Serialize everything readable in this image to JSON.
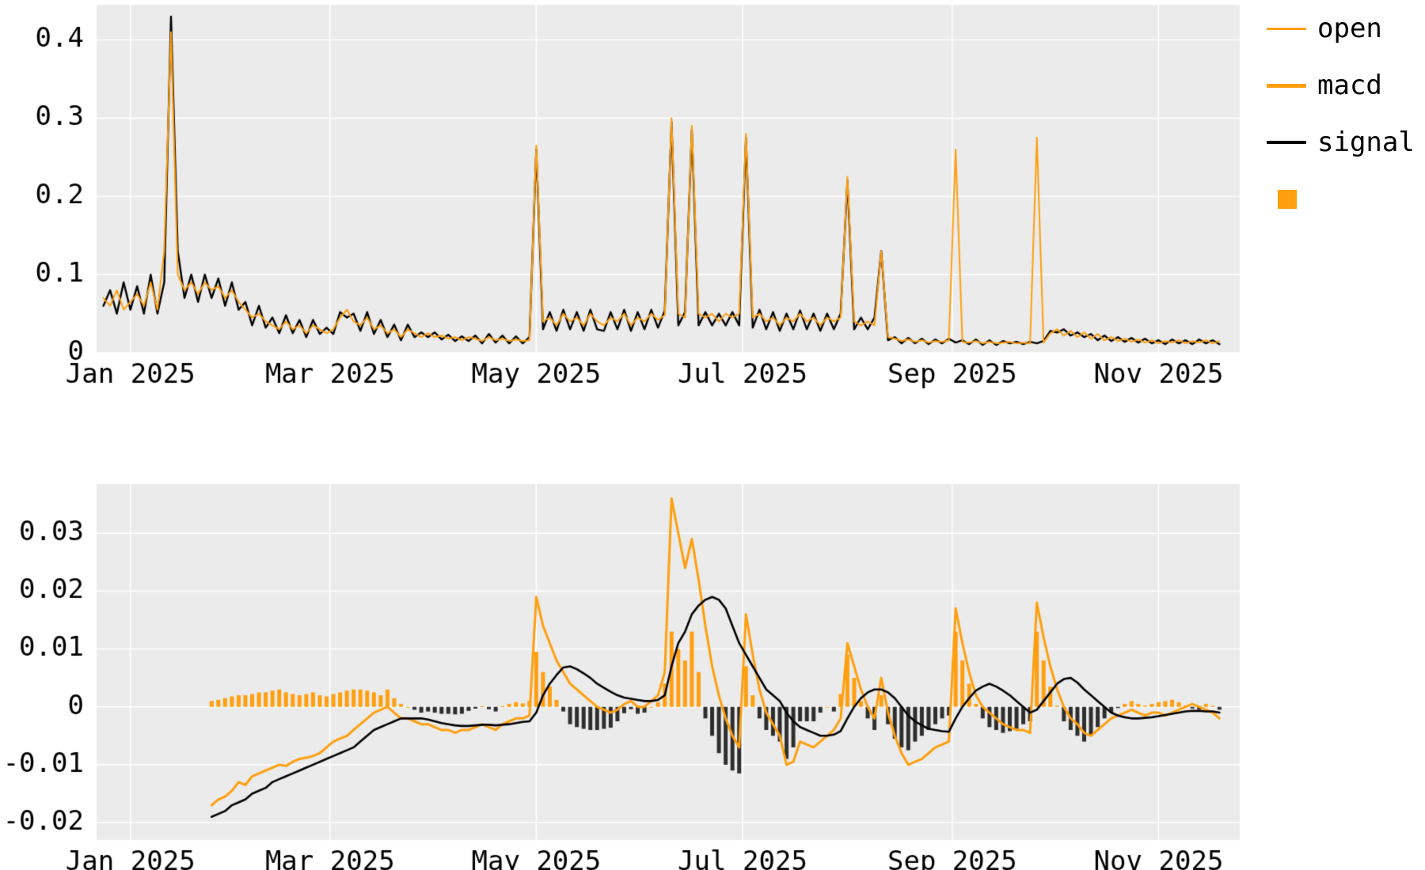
{
  "figure": {
    "background": "#ffffff",
    "plot_bg": "#ebebeb",
    "grid_color": "#ffffff",
    "tick_color": "#000000"
  },
  "legend": {
    "position": "right-outside",
    "items": [
      {
        "label": "open",
        "type": "line",
        "color": "#ff9f0e",
        "width": 2
      },
      {
        "label": "macd",
        "type": "line",
        "color": "#ff9f0e",
        "width": 4
      },
      {
        "label": "signal",
        "type": "line",
        "color": "#000000",
        "width": 3
      },
      {
        "label": "",
        "type": "square",
        "color": "#ff9f0e"
      }
    ]
  },
  "chart_data": [
    {
      "id": "price-panel",
      "type": "line",
      "title": "",
      "xlabel": "",
      "ylabel": "",
      "x_unit": "days from 2025-01-01",
      "xlim": [
        -10,
        328
      ],
      "ylim": [
        0,
        0.445
      ],
      "grid": true,
      "y_ticks": [
        0,
        0.1,
        0.2,
        0.3,
        0.4
      ],
      "y_tick_labels": [
        "0",
        "0.1",
        "0.2",
        "0.3",
        "0.4"
      ],
      "x_ticks": [
        {
          "day": 0,
          "label": "Jan 2025"
        },
        {
          "day": 59,
          "label": "Mar 2025"
        },
        {
          "day": 120,
          "label": "May 2025"
        },
        {
          "day": 181,
          "label": "Jul 2025"
        },
        {
          "day": 243,
          "label": "Sep 2025"
        },
        {
          "day": 304,
          "label": "Nov 2025"
        }
      ],
      "series": [
        {
          "name": "signal",
          "color": "#000000",
          "width": 2.4,
          "x0": -8,
          "dx": 2,
          "values": [
            0.06,
            0.08,
            0.05,
            0.09,
            0.055,
            0.085,
            0.05,
            0.1,
            0.05,
            0.09,
            0.43,
            0.13,
            0.07,
            0.1,
            0.065,
            0.1,
            0.07,
            0.095,
            0.06,
            0.09,
            0.055,
            0.065,
            0.035,
            0.06,
            0.032,
            0.045,
            0.025,
            0.048,
            0.025,
            0.042,
            0.02,
            0.042,
            0.024,
            0.032,
            0.024,
            0.052,
            0.045,
            0.05,
            0.028,
            0.052,
            0.024,
            0.042,
            0.02,
            0.036,
            0.016,
            0.036,
            0.02,
            0.026,
            0.02,
            0.026,
            0.017,
            0.023,
            0.015,
            0.021,
            0.015,
            0.022,
            0.012,
            0.024,
            0.013,
            0.022,
            0.012,
            0.021,
            0.012,
            0.02,
            0.26,
            0.03,
            0.052,
            0.028,
            0.055,
            0.03,
            0.052,
            0.028,
            0.055,
            0.03,
            0.028,
            0.052,
            0.03,
            0.055,
            0.028,
            0.052,
            0.03,
            0.055,
            0.032,
            0.054,
            0.295,
            0.035,
            0.052,
            0.285,
            0.035,
            0.052,
            0.035,
            0.05,
            0.035,
            0.052,
            0.035,
            0.275,
            0.032,
            0.055,
            0.03,
            0.052,
            0.028,
            0.05,
            0.03,
            0.054,
            0.03,
            0.05,
            0.028,
            0.05,
            0.03,
            0.05,
            0.22,
            0.03,
            0.045,
            0.03,
            0.045,
            0.13,
            0.016,
            0.02,
            0.012,
            0.019,
            0.012,
            0.018,
            0.011,
            0.017,
            0.012,
            0.018,
            0.013,
            0.016,
            0.011,
            0.017,
            0.01,
            0.016,
            0.01,
            0.015,
            0.012,
            0.014,
            0.011,
            0.014,
            0.012,
            0.015,
            0.028,
            0.026,
            0.03,
            0.022,
            0.026,
            0.02,
            0.024,
            0.016,
            0.022,
            0.015,
            0.02,
            0.014,
            0.019,
            0.013,
            0.018,
            0.012,
            0.016,
            0.011,
            0.017,
            0.012,
            0.016,
            0.011,
            0.017,
            0.012,
            0.016,
            0.011
          ]
        },
        {
          "name": "open",
          "color": "#ff9f0e",
          "width": 2,
          "x0": -8,
          "dx": 2,
          "values": [
            0.07,
            0.06,
            0.08,
            0.055,
            0.065,
            0.075,
            0.06,
            0.09,
            0.055,
            0.13,
            0.41,
            0.1,
            0.08,
            0.09,
            0.075,
            0.09,
            0.08,
            0.085,
            0.07,
            0.08,
            0.065,
            0.055,
            0.045,
            0.05,
            0.04,
            0.035,
            0.03,
            0.04,
            0.03,
            0.035,
            0.025,
            0.035,
            0.03,
            0.025,
            0.03,
            0.045,
            0.055,
            0.04,
            0.035,
            0.045,
            0.03,
            0.035,
            0.025,
            0.03,
            0.02,
            0.03,
            0.025,
            0.02,
            0.025,
            0.02,
            0.022,
            0.018,
            0.02,
            0.016,
            0.02,
            0.018,
            0.015,
            0.02,
            0.016,
            0.018,
            0.015,
            0.017,
            0.015,
            0.016,
            0.265,
            0.04,
            0.045,
            0.035,
            0.05,
            0.04,
            0.045,
            0.035,
            0.05,
            0.04,
            0.035,
            0.045,
            0.04,
            0.05,
            0.035,
            0.045,
            0.04,
            0.05,
            0.042,
            0.048,
            0.3,
            0.05,
            0.045,
            0.29,
            0.05,
            0.045,
            0.05,
            0.04,
            0.05,
            0.045,
            0.05,
            0.28,
            0.045,
            0.05,
            0.04,
            0.045,
            0.035,
            0.045,
            0.04,
            0.05,
            0.04,
            0.045,
            0.035,
            0.045,
            0.04,
            0.045,
            0.225,
            0.04,
            0.035,
            0.04,
            0.035,
            0.13,
            0.02,
            0.018,
            0.015,
            0.017,
            0.014,
            0.016,
            0.013,
            0.015,
            0.014,
            0.016,
            0.26,
            0.014,
            0.013,
            0.015,
            0.012,
            0.014,
            0.012,
            0.013,
            0.014,
            0.012,
            0.013,
            0.012,
            0.275,
            0.013,
            0.025,
            0.03,
            0.022,
            0.028,
            0.02,
            0.026,
            0.018,
            0.024,
            0.016,
            0.02,
            0.015,
            0.018,
            0.014,
            0.017,
            0.013,
            0.016,
            0.012,
            0.015,
            0.013,
            0.016,
            0.012,
            0.015,
            0.013,
            0.016,
            0.012,
            0.015
          ]
        }
      ]
    },
    {
      "id": "macd-panel",
      "type": "line+histogram",
      "title": "",
      "xlabel": "",
      "ylabel": "",
      "x_unit": "days from 2025-01-01",
      "xlim": [
        -10,
        328
      ],
      "ylim": [
        -0.023,
        0.0385
      ],
      "grid": true,
      "y_ticks": [
        -0.02,
        -0.01,
        0,
        0.01,
        0.02,
        0.03
      ],
      "y_tick_labels": [
        "-0.02",
        "-0.01",
        "0",
        "0.01",
        "0.02",
        "0.03"
      ],
      "x_ticks": [
        {
          "day": 0,
          "label": "Jan 2025"
        },
        {
          "day": 59,
          "label": "Mar 2025"
        },
        {
          "day": 120,
          "label": "May 2025"
        },
        {
          "day": 181,
          "label": "Jul 2025"
        },
        {
          "day": 243,
          "label": "Sep 2025"
        },
        {
          "day": 304,
          "label": "Nov 2025"
        }
      ],
      "histogram": {
        "name": "macd-histogram",
        "pos_color": "#ff9f0e",
        "neg_color": "#2e2e2e",
        "x0": 24,
        "dx": 2,
        "values": [
          0.001,
          0.0012,
          0.0015,
          0.0018,
          0.002,
          0.002,
          0.0022,
          0.0025,
          0.0025,
          0.0028,
          0.003,
          0.0025,
          0.0022,
          0.002,
          0.0022,
          0.0025,
          0.002,
          0.0018,
          0.0022,
          0.0025,
          0.0028,
          0.003,
          0.003,
          0.0028,
          0.0025,
          0.002,
          0.003,
          0.0015,
          0.0005,
          0.0,
          -0.0005,
          -0.001,
          -0.0008,
          -0.001,
          -0.0012,
          -0.0012,
          -0.0013,
          -0.0012,
          -0.0007,
          -0.0003,
          0.0001,
          -0.0004,
          -0.0008,
          0.0001,
          0.0005,
          0.0008,
          0.0006,
          0.001,
          0.0095,
          0.006,
          0.0035,
          0.0012,
          -0.0008,
          -0.003,
          -0.0035,
          -0.0038,
          -0.004,
          -0.004,
          -0.0038,
          -0.0036,
          -0.0025,
          -0.0011,
          -0.0004,
          -0.0012,
          -0.001,
          0.0,
          0.0008,
          0.004,
          0.013,
          0.01,
          0.008,
          0.013,
          0.006,
          -0.002,
          -0.005,
          -0.008,
          -0.01,
          -0.011,
          -0.0115,
          0.007,
          0.002,
          -0.002,
          -0.004,
          -0.005,
          -0.006,
          -0.009,
          -0.007,
          -0.0025,
          -0.0025,
          -0.0025,
          -0.001,
          0.0,
          -0.0008,
          0.0022,
          0.009,
          0.005,
          0.001,
          -0.002,
          -0.004,
          0.002,
          -0.003,
          -0.0055,
          -0.007,
          -0.0075,
          -0.006,
          -0.005,
          -0.004,
          -0.003,
          -0.002,
          -0.0015,
          0.013,
          0.008,
          0.004,
          0.0005,
          -0.002,
          -0.0035,
          -0.004,
          -0.0045,
          -0.0042,
          -0.0038,
          -0.003,
          -0.0025,
          0.013,
          0.008,
          0.0035,
          0.0002,
          -0.0025,
          -0.004,
          -0.005,
          -0.006,
          -0.005,
          -0.0035,
          -0.002,
          -0.001,
          -0.0002,
          0.0005,
          0.001,
          0.0005,
          0.0002,
          0.0005,
          0.0008,
          0.001,
          0.0012,
          0.0008,
          0.0002,
          -0.0003,
          -0.0005,
          0.0005,
          0.0002,
          -0.0005
        ]
      },
      "series": [
        {
          "name": "macd",
          "color": "#ff9f0e",
          "width": 3,
          "x0": 24,
          "dx": 2,
          "values": [
            -0.017,
            -0.016,
            -0.0155,
            -0.0145,
            -0.013,
            -0.0135,
            -0.012,
            -0.0115,
            -0.011,
            -0.0105,
            -0.01,
            -0.0102,
            -0.0095,
            -0.009,
            -0.0088,
            -0.0085,
            -0.008,
            -0.007,
            -0.006,
            -0.0055,
            -0.005,
            -0.004,
            -0.003,
            -0.002,
            -0.001,
            -0.0005,
            0.0,
            -0.001,
            -0.002,
            -0.002,
            -0.0025,
            -0.003,
            -0.003,
            -0.0035,
            -0.004,
            -0.004,
            -0.0045,
            -0.004,
            -0.004,
            -0.0035,
            -0.003,
            -0.0035,
            -0.004,
            -0.003,
            -0.0025,
            -0.002,
            -0.002,
            -0.0015,
            0.019,
            0.014,
            0.011,
            0.008,
            0.006,
            0.004,
            0.003,
            0.002,
            0.001,
            0.0,
            -0.0005,
            -0.001,
            -0.0005,
            0.0005,
            0.001,
            0.0,
            0.0,
            0.001,
            0.002,
            0.006,
            0.036,
            0.03,
            0.024,
            0.029,
            0.022,
            0.014,
            0.007,
            0.002,
            -0.002,
            -0.005,
            -0.007,
            0.016,
            0.009,
            0.003,
            -0.001,
            -0.003,
            -0.005,
            -0.01,
            -0.0095,
            -0.006,
            -0.0065,
            -0.007,
            -0.006,
            -0.005,
            -0.004,
            -0.002,
            0.011,
            0.007,
            0.003,
            0.0,
            -0.002,
            0.005,
            -0.001,
            -0.005,
            -0.008,
            -0.01,
            -0.0095,
            -0.009,
            -0.008,
            -0.007,
            -0.0065,
            -0.006,
            0.017,
            0.011,
            0.006,
            0.002,
            0.0,
            -0.001,
            -0.002,
            -0.003,
            -0.0035,
            -0.004,
            -0.004,
            -0.0045,
            0.018,
            0.012,
            0.007,
            0.003,
            0.0,
            -0.002,
            -0.003,
            -0.0045,
            -0.005,
            -0.004,
            -0.003,
            -0.002,
            -0.0015,
            -0.001,
            -0.0005,
            -0.001,
            -0.0015,
            -0.001,
            -0.001,
            -0.0015,
            -0.001,
            -0.0005,
            0.0,
            0.0005,
            0.0,
            -0.0005,
            -0.001,
            -0.002
          ]
        },
        {
          "name": "signal",
          "color": "#000000",
          "width": 2.6,
          "x0": 24,
          "dx": 2,
          "values": [
            -0.019,
            -0.0185,
            -0.018,
            -0.017,
            -0.0165,
            -0.016,
            -0.015,
            -0.0145,
            -0.014,
            -0.013,
            -0.0125,
            -0.012,
            -0.0115,
            -0.011,
            -0.0105,
            -0.01,
            -0.0095,
            -0.009,
            -0.0085,
            -0.008,
            -0.0075,
            -0.007,
            -0.006,
            -0.005,
            -0.004,
            -0.0035,
            -0.003,
            -0.0025,
            -0.002,
            -0.002,
            -0.002,
            -0.002,
            -0.0022,
            -0.0025,
            -0.0028,
            -0.003,
            -0.0032,
            -0.0033,
            -0.0033,
            -0.0032,
            -0.0031,
            -0.0031,
            -0.0032,
            -0.0031,
            -0.003,
            -0.0028,
            -0.0026,
            -0.0025,
            -0.001,
            0.002,
            0.004,
            0.0055,
            0.0068,
            0.007,
            0.0065,
            0.0058,
            0.005,
            0.004,
            0.0033,
            0.0026,
            0.002,
            0.0016,
            0.0014,
            0.0012,
            0.001,
            0.001,
            0.0012,
            0.002,
            0.007,
            0.011,
            0.013,
            0.016,
            0.0175,
            0.0185,
            0.019,
            0.0185,
            0.017,
            0.014,
            0.011,
            0.009,
            0.007,
            0.005,
            0.003,
            0.002,
            0.001,
            -0.001,
            -0.0025,
            -0.0035,
            -0.004,
            -0.0045,
            -0.005,
            -0.005,
            -0.0048,
            -0.0042,
            -0.002,
            0.0,
            0.0015,
            0.0025,
            0.003,
            0.003,
            0.0025,
            0.0015,
            0.0,
            -0.0015,
            -0.0025,
            -0.0032,
            -0.0038,
            -0.004,
            -0.0042,
            -0.0043,
            -0.002,
            0.0,
            0.0015,
            0.0028,
            0.0035,
            0.004,
            0.0035,
            0.0028,
            0.002,
            0.001,
            0.0,
            -0.001,
            -0.0005,
            0.001,
            0.0025,
            0.004,
            0.0048,
            0.005,
            0.0042,
            0.003,
            0.002,
            0.001,
            0.0,
            -0.001,
            -0.0015,
            -0.0018,
            -0.002,
            -0.002,
            -0.0019,
            -0.0018,
            -0.0016,
            -0.0014,
            -0.0012,
            -0.001,
            -0.0008,
            -0.0007,
            -0.0007,
            -0.0008,
            -0.0008,
            -0.001
          ]
        }
      ]
    }
  ]
}
